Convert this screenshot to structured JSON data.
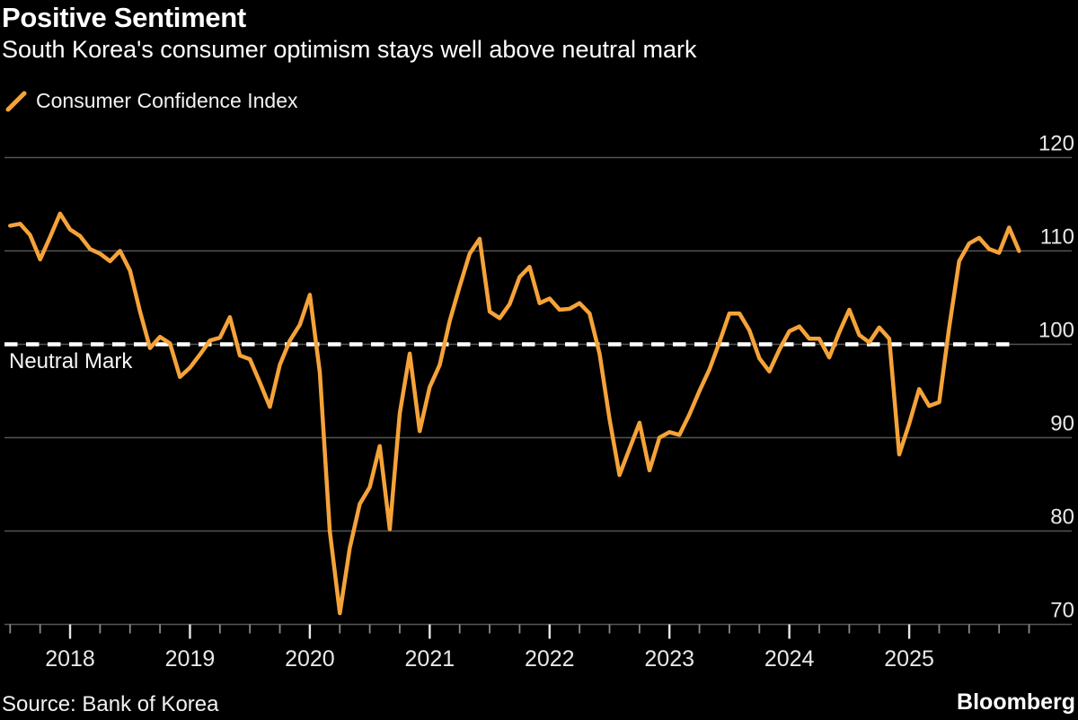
{
  "header": {
    "title": "Positive Sentiment",
    "subtitle": "South Korea's consumer optimism stays well above neutral mark"
  },
  "legend": {
    "label": "Consumer Confidence Index",
    "swatch_color": "#F5A339"
  },
  "annotations": {
    "neutral_mark_label": "Neutral Mark"
  },
  "footer": {
    "source": "Source: Bank of Korea",
    "logo": "Bloomberg"
  },
  "colors": {
    "background": "#000000",
    "line": "#F5A339",
    "gridline": "#555555",
    "dashed_reference": "#FFFFFF",
    "tick_minor": "#8A8A8A",
    "tick_year": "#E8E8E8",
    "text": "#F2F2F2"
  },
  "chart_data": {
    "type": "line",
    "title": "Positive Sentiment",
    "subtitle": "South Korea's consumer optimism stays well above neutral mark",
    "legend_position": "top-left",
    "grid": true,
    "background": "#000000",
    "y_axis": {
      "side": "right",
      "ticks": [
        70,
        80,
        90,
        100,
        110,
        120
      ],
      "range": [
        67,
        122
      ]
    },
    "x_axis": {
      "year_labels": [
        "2018",
        "2019",
        "2020",
        "2021",
        "2022",
        "2023",
        "2024",
        "2025"
      ],
      "minor_tick_interval": "quarterly",
      "range": [
        "2017-07",
        "2025-12"
      ]
    },
    "reference_line": {
      "value": 100,
      "label": "Neutral Mark",
      "style": "dashed",
      "color": "#FFFFFF"
    },
    "series": [
      {
        "name": "Consumer Confidence Index",
        "color": "#F5A339",
        "frequency": "monthly",
        "start": "2017-07",
        "end": "2025-12",
        "values": [
          112.7,
          112.9,
          111.7,
          109.1,
          111.5,
          114.0,
          112.3,
          111.6,
          110.2,
          109.7,
          108.9,
          110.0,
          107.9,
          103.5,
          99.6,
          100.8,
          100.1,
          96.5,
          97.5,
          98.9,
          100.4,
          100.7,
          102.9,
          98.8,
          98.4,
          95.9,
          93.3,
          97.8,
          100.4,
          102.1,
          105.3,
          97.0,
          80.0,
          71.2,
          78.2,
          82.9,
          84.7,
          89.1,
          80.2,
          92.6,
          99.0,
          90.7,
          95.4,
          97.8,
          102.5,
          106.2,
          109.7,
          111.3,
          103.5,
          102.8,
          104.3,
          107.2,
          108.3,
          104.4,
          104.9,
          103.7,
          103.8,
          104.4,
          103.3,
          99.0,
          92.0,
          86.0,
          88.8,
          91.6,
          86.5,
          90.0,
          90.6,
          90.3,
          92.5,
          95.0,
          97.3,
          100.2,
          103.3,
          103.3,
          101.5,
          98.5,
          97.1,
          99.4,
          101.4,
          101.9,
          100.6,
          100.6,
          98.6,
          101.3,
          103.7,
          101.0,
          100.2,
          101.8,
          100.6,
          88.2,
          91.5,
          95.2,
          93.4,
          93.8,
          101.8,
          108.9,
          110.8,
          111.4,
          110.2,
          109.8,
          112.5,
          110.0
        ]
      }
    ]
  }
}
